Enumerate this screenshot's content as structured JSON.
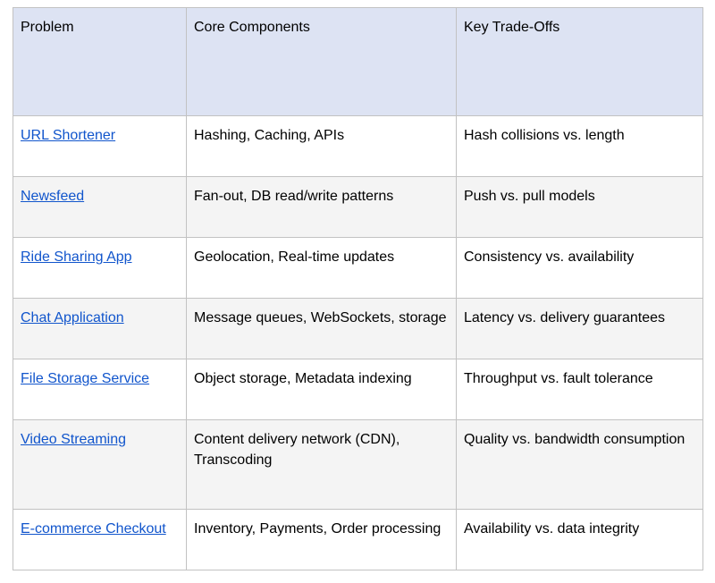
{
  "colors": {
    "header_bg": "#dde3f3",
    "stripe_bg": "#f4f4f4",
    "border": "#c2c2c2",
    "link": "#1155cc",
    "text": "#000000",
    "page_bg": "#ffffff"
  },
  "table": {
    "headers": [
      "Problem",
      "Core Components",
      "Key Trade-Offs"
    ],
    "rows": [
      {
        "problem": "URL Shortener",
        "components": "Hashing, Caching, APIs",
        "tradeoffs": "Hash collisions vs. length"
      },
      {
        "problem": "Newsfeed",
        "components": "Fan-out, DB read/write patterns",
        "tradeoffs": "Push vs. pull models"
      },
      {
        "problem": "Ride Sharing App",
        "components": "Geolocation, Real-time updates",
        "tradeoffs": "Consistency vs. availability"
      },
      {
        "problem": "Chat Application",
        "components": "Message queues, WebSockets, storage",
        "tradeoffs": "Latency vs. delivery guarantees"
      },
      {
        "problem": "File Storage Service",
        "components": "Object storage, Metadata indexing",
        "tradeoffs": "Throughput vs. fault tolerance"
      },
      {
        "problem": "Video Streaming",
        "components": "Content delivery network (CDN), Transcoding",
        "tradeoffs": "Quality vs. bandwidth consumption"
      },
      {
        "problem": "E-commerce Checkout",
        "components": "Inventory, Payments, Order processing",
        "tradeoffs": "Availability vs. data integrity"
      }
    ]
  }
}
